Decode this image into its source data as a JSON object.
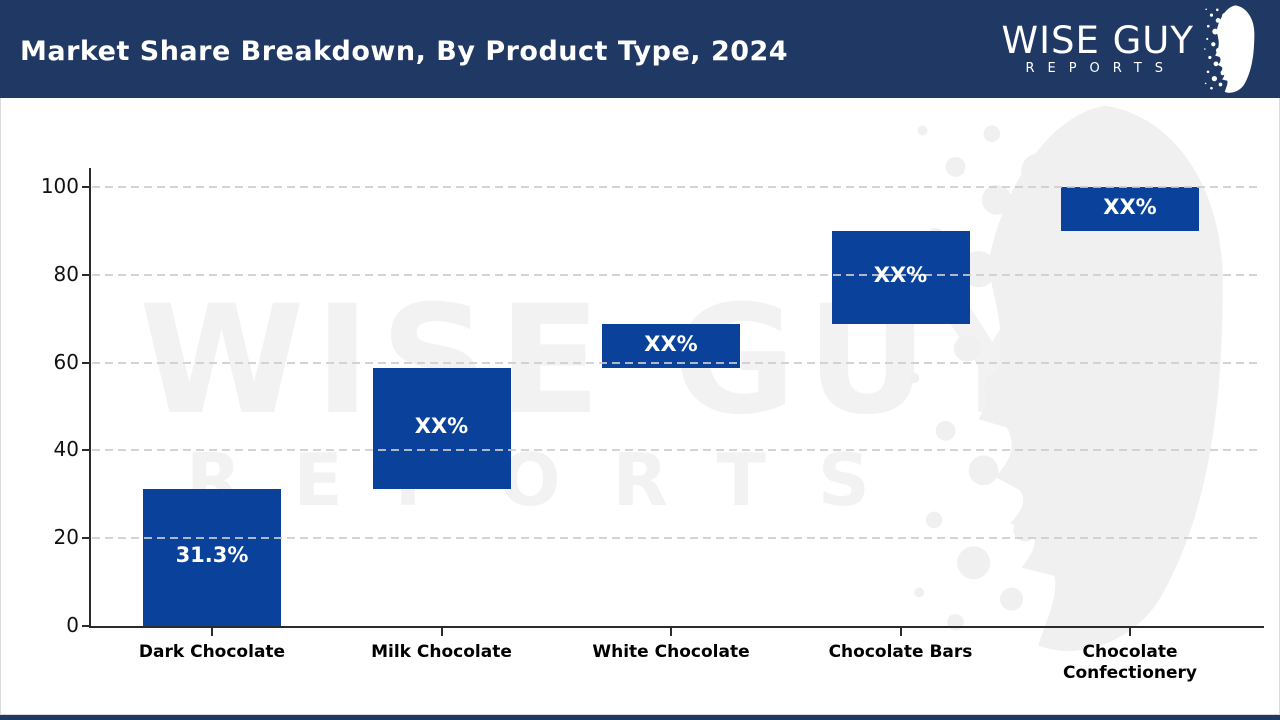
{
  "header": {
    "title": "Market Share Breakdown, By Product Type, 2024",
    "logo": {
      "line1": "WISE GUY",
      "line2": "REPORTS"
    }
  },
  "watermark": {
    "line1": "WISE GUY",
    "line2": "REPORTS"
  },
  "chart_data": {
    "type": "bar",
    "subtype": "waterfall",
    "title": "Market Share Breakdown, By Product Type, 2024",
    "categories": [
      "Dark Chocolate",
      "Milk Chocolate",
      "White Chocolate",
      "Chocolate Bars",
      "Chocolate Confectionery"
    ],
    "segments": [
      {
        "category": "Dark Chocolate",
        "start": 0,
        "end": 31.3,
        "label": "31.3%"
      },
      {
        "category": "Milk Chocolate",
        "start": 31.3,
        "end": 58.8,
        "label": "XX%"
      },
      {
        "category": "White Chocolate",
        "start": 58.8,
        "end": 68.8,
        "label": "XX%"
      },
      {
        "category": "Chocolate Bars",
        "start": 68.8,
        "end": 90,
        "label": "XX%"
      },
      {
        "category": "Chocolate Confectionery",
        "start": 90,
        "end": 100,
        "label": "XX%"
      }
    ],
    "xlabel": "",
    "ylabel": "",
    "ylim": [
      0,
      100
    ],
    "yticks": [
      0,
      20,
      40,
      60,
      80,
      100
    ],
    "grid": "dashed-horizontal",
    "legend": "none",
    "bar_color": "#0a429b",
    "bar_label_color": "#ffffff"
  },
  "colors": {
    "header_bg": "#203864",
    "bar": "#0a429b",
    "grid": "#d9d9d9",
    "axis": "#2b2b2b",
    "watermark": "#f2f2f2"
  }
}
